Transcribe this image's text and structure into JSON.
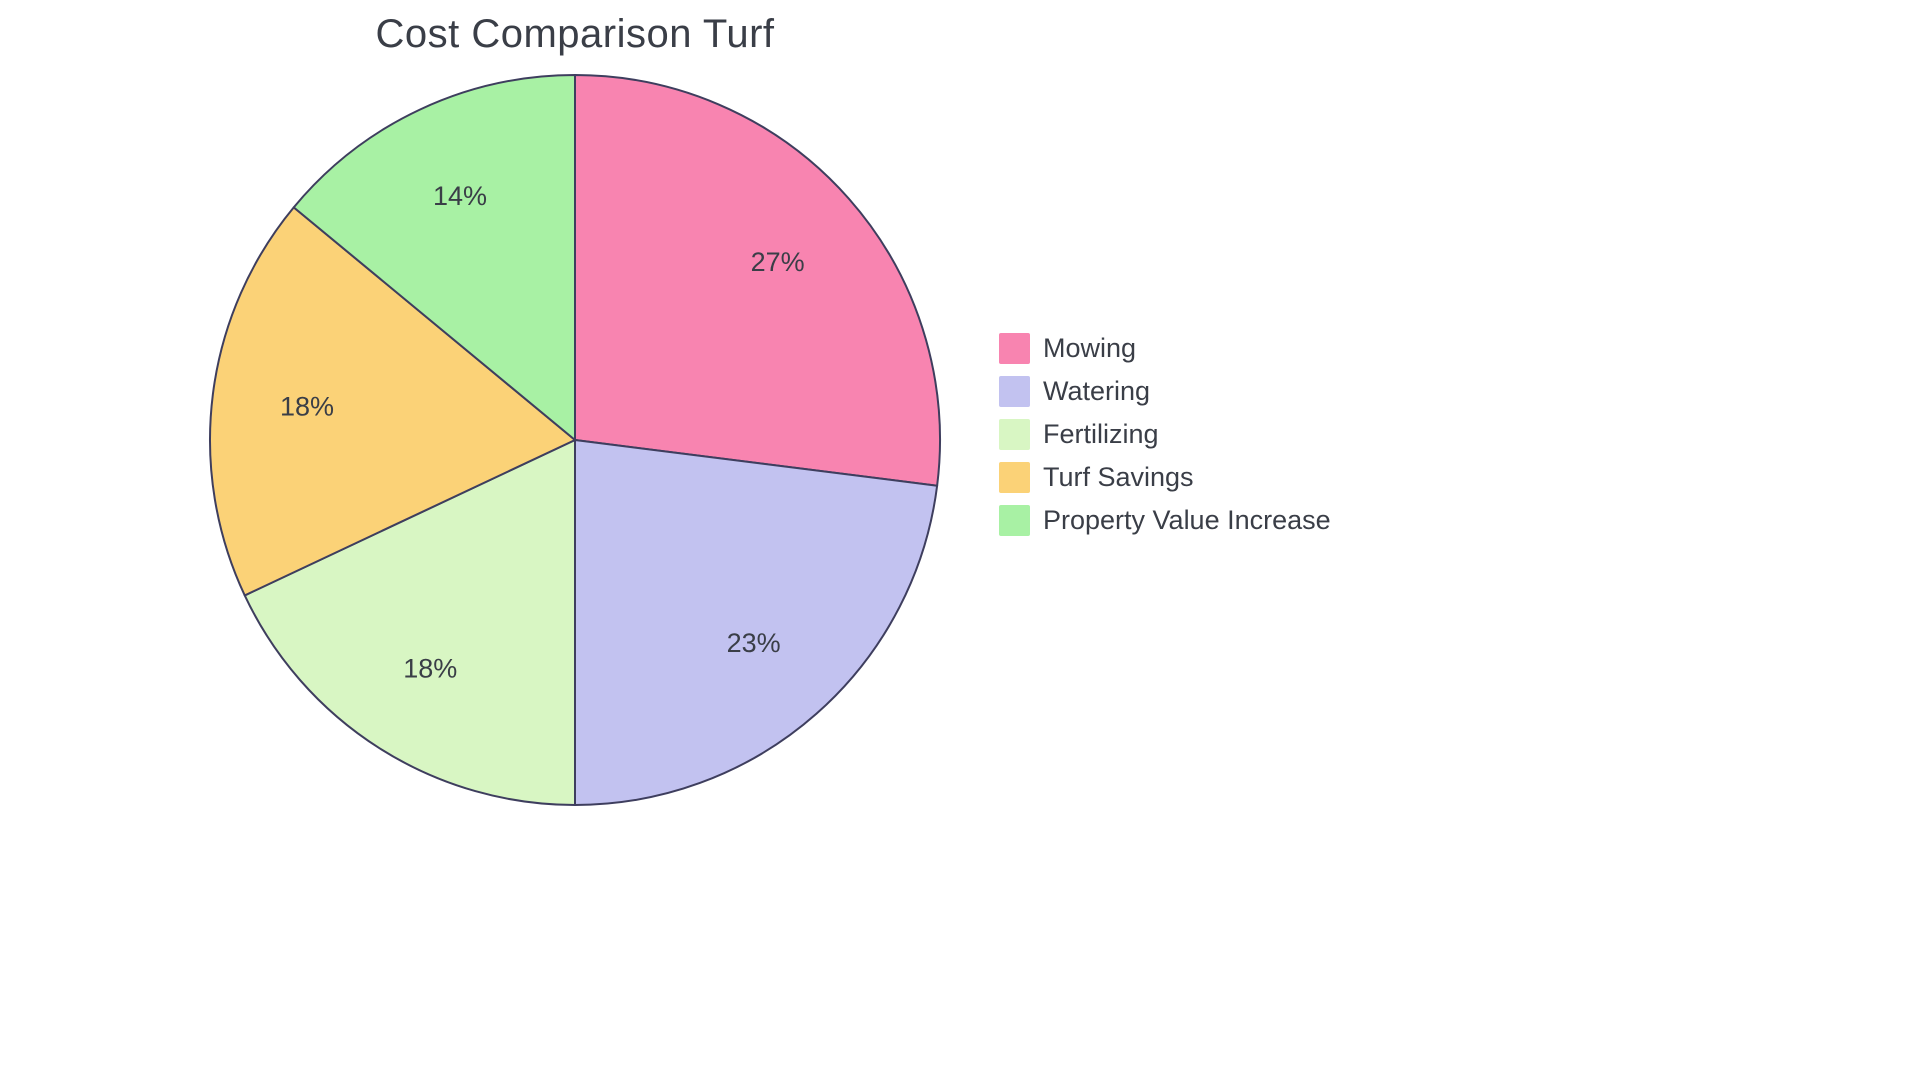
{
  "chart_data": {
    "type": "pie",
    "title": "Cost Comparison Turf",
    "labels": [
      "Mowing",
      "Watering",
      "Fertilizing",
      "Turf Savings",
      "Property Value Increase"
    ],
    "values": [
      27,
      23,
      18,
      18,
      14
    ],
    "percent_labels": [
      "27%",
      "23%",
      "18%",
      "18%",
      "14%"
    ],
    "colors": [
      "#F884B0",
      "#C2C2F0",
      "#D8F6C3",
      "#FBD277",
      "#A8F1A4"
    ],
    "stroke_color": "#3E3E5E",
    "text_color": "#3A3E47",
    "start_angle_deg": 0,
    "direction": "clockwise",
    "legend_position": "right",
    "background_color": "#FFFFFF"
  }
}
